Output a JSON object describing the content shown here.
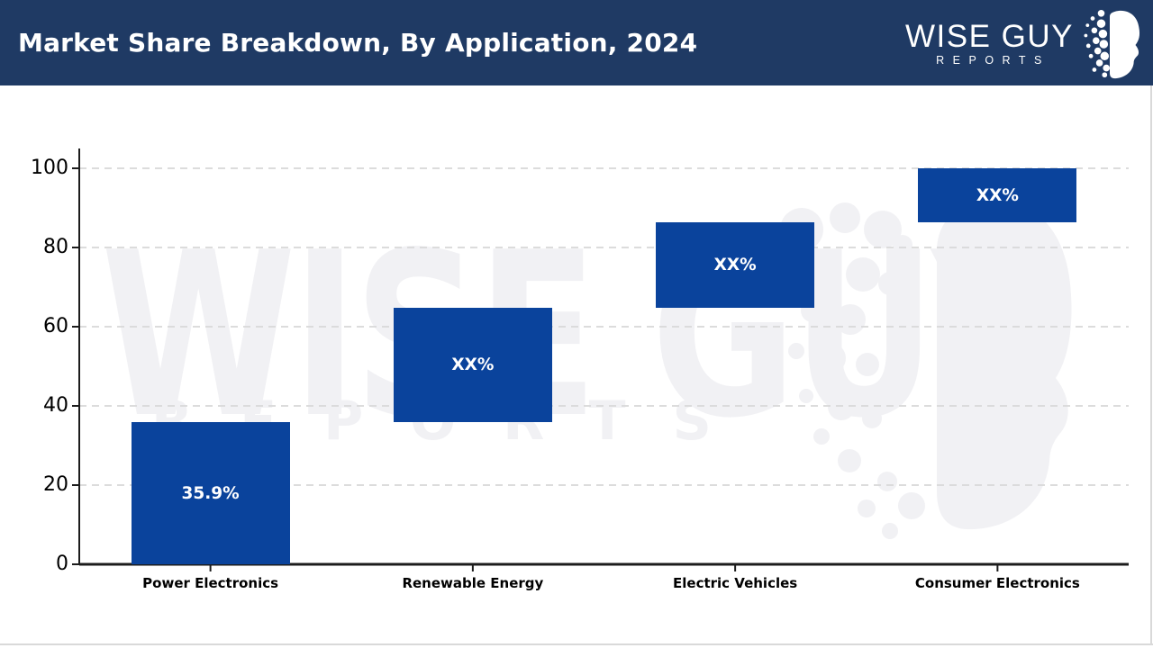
{
  "header": {
    "title": "Market Share Breakdown, By Application, 2024",
    "bg_color": "#1f3a64",
    "logo": {
      "wordmark": "WISE GUY",
      "subtext": "REPORTS"
    }
  },
  "watermark": {
    "wordmark": "WISE GUY",
    "subtext": "REPORTS"
  },
  "chart_data": {
    "type": "bar",
    "variant": "waterfall",
    "title": "Market Share Breakdown, By Application, 2024",
    "categories": [
      "Power Electronics",
      "Renewable Energy",
      "Electric Vehicles",
      "Consumer Electronics"
    ],
    "segments": [
      {
        "category": "Power Electronics",
        "start": 0,
        "end": 35.9,
        "label": "35.9%"
      },
      {
        "category": "Renewable Energy",
        "start": 35.9,
        "end": 64.8,
        "label": "XX%"
      },
      {
        "category": "Electric Vehicles",
        "start": 64.8,
        "end": 86.3,
        "label": "XX%"
      },
      {
        "category": "Consumer Electronics",
        "start": 86.3,
        "end": 100,
        "label": "XX%"
      }
    ],
    "ylim": [
      0,
      100
    ],
    "yticks": [
      0,
      20,
      40,
      60,
      80,
      100
    ],
    "xlabel": "",
    "ylabel": "",
    "grid": "horizontal-dashed",
    "legend": "none",
    "bar_color": "#0a439c",
    "bar_label_color": "#ffffff",
    "axis_color": "#1c1c1c",
    "gridline_color": "#d8d8d8"
  }
}
